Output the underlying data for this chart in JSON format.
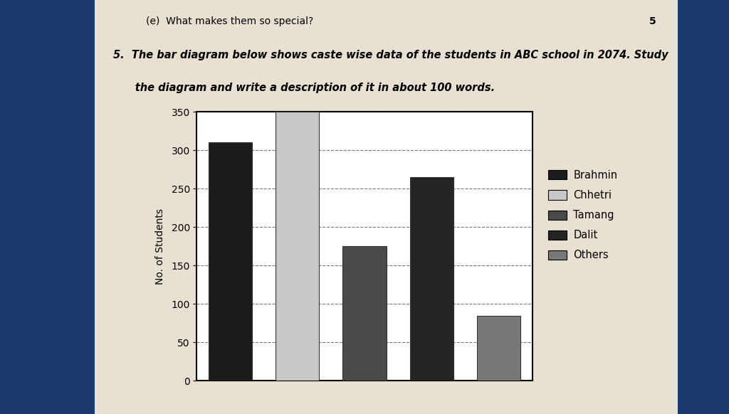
{
  "ylabel": "No. of Students",
  "ylim": [
    0,
    350
  ],
  "yticks": [
    0,
    50,
    100,
    150,
    200,
    250,
    300,
    350
  ],
  "categories": [
    "Brahmin",
    "Chhetri",
    "Tamang",
    "Dalit",
    "Others"
  ],
  "values": [
    310,
    350,
    175,
    265,
    85
  ],
  "bar_colors": [
    "#1c1c1c",
    "#c8c8c8",
    "#4a4a4a",
    "#252525",
    "#787878"
  ],
  "legend_labels": [
    "Brahmin",
    "Chhetri",
    "Tamang",
    "Dalit",
    "Others"
  ],
  "legend_colors": [
    "#1c1c1c",
    "#c8c8c8",
    "#4a4a4a",
    "#252525",
    "#787878"
  ],
  "page_color": "#e8e0d0",
  "plot_bg_color": "#ffffff",
  "outer_bg_color": "#1a3a6e",
  "grid_color": "#777777",
  "bar_width": 0.65,
  "text_e": "(e)  What makes them so special?",
  "text_5_a": "5.  The bar diagram below shows caste wise data of the students in ABC school in 2074. Study",
  "text_5_b": "      the diagram and write a description of it in about 100 words.",
  "page_number": "5"
}
